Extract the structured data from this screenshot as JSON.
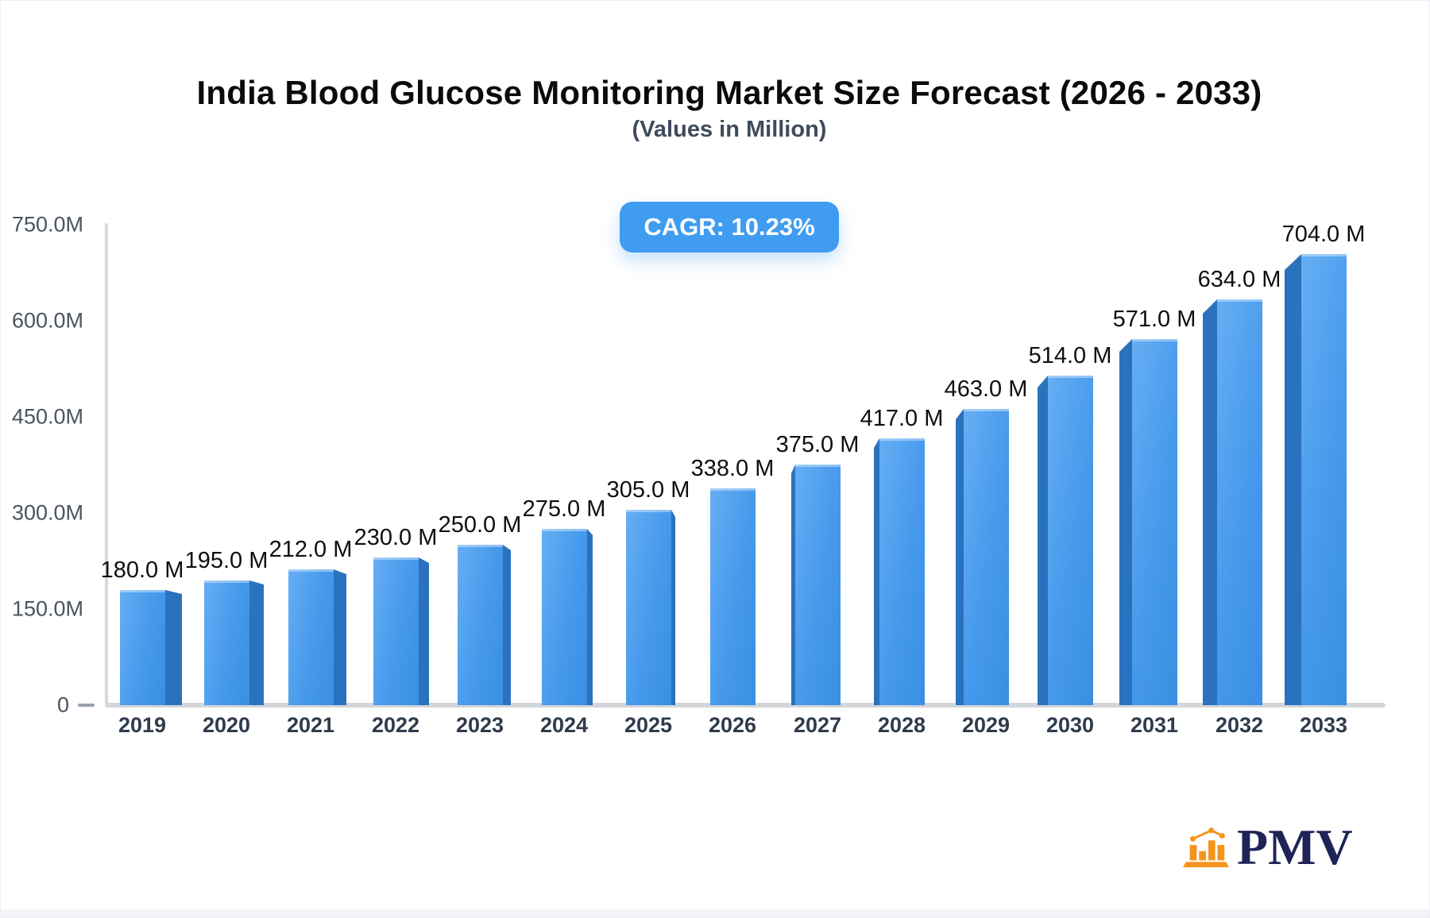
{
  "header": {
    "title": "India Blood Glucose Monitoring Market Size Forecast (2026 - 2033)",
    "subtitle": "(Values in Million)"
  },
  "badge": {
    "text": "CAGR: 10.23%"
  },
  "chart_data": {
    "type": "bar",
    "style": "3d-perspective-columns",
    "title": "India Blood Glucose Monitoring Market Size Forecast (2026 - 2033)",
    "subtitle": "(Values in Million)",
    "cagr": "10.23%",
    "unit": "Million",
    "categories": [
      "2019",
      "2020",
      "2021",
      "2022",
      "2023",
      "2024",
      "2025",
      "2026",
      "2027",
      "2028",
      "2029",
      "2030",
      "2031",
      "2032",
      "2033"
    ],
    "values": [
      180,
      195,
      212,
      230,
      250,
      275,
      305,
      338,
      375,
      417,
      463,
      514,
      571,
      634,
      704
    ],
    "data_labels": [
      "180.0 M",
      "195.0 M",
      "212.0 M",
      "230.0 M",
      "250.0 M",
      "275.0 M",
      "305.0 M",
      "338.0 M",
      "375.0 M",
      "417.0 M",
      "463.0 M",
      "514.0 M",
      "571.0 M",
      "634.0 M",
      "704.0 M"
    ],
    "y_axis": {
      "ticks": [
        {
          "label": "750.0M",
          "value": 750
        },
        {
          "label": "600.0M",
          "value": 600
        },
        {
          "label": "450.0M",
          "value": 450
        },
        {
          "label": "300.0M",
          "value": 300
        },
        {
          "label": "150.0M",
          "value": 150
        },
        {
          "label": "0",
          "value": 0
        }
      ],
      "range": [
        0,
        750
      ]
    },
    "grid": false,
    "legend": false,
    "colors": {
      "bar_front": "#4699ec",
      "bar_front_light": "#66aef3",
      "bar_side": "#2a72bd",
      "badge": "#3f9cf0",
      "axis": "#d7d9dc",
      "label_text": "#0e0f11"
    }
  },
  "logo": {
    "text": "PMV",
    "icon": "bar-chart-logo-icon",
    "text_color": "#1f2456",
    "icon_color": "#f5941d"
  }
}
